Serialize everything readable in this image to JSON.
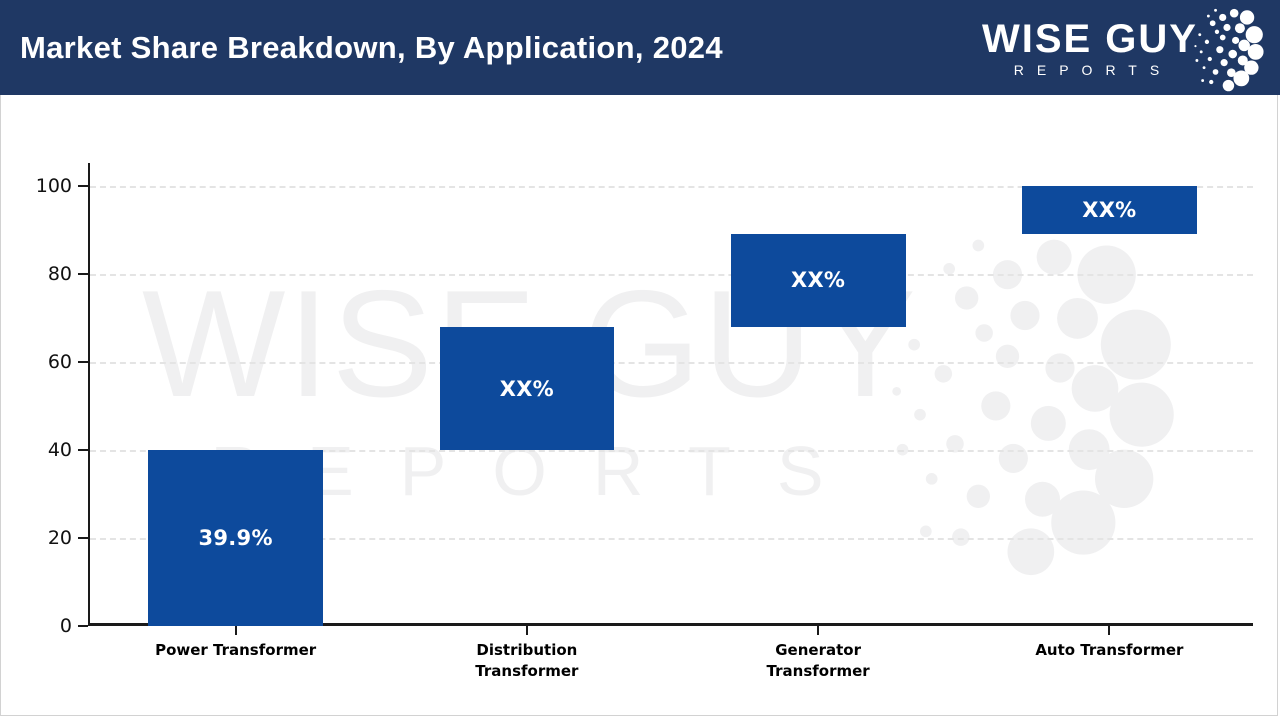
{
  "header": {
    "title": "Market Share Breakdown, By Application, 2024",
    "logo": {
      "line1": "WISE GUY",
      "line2": "REPORTS"
    },
    "bg_color": "#1f3864"
  },
  "watermark": {
    "line1": "WISE GUY",
    "line2": "REPORTS"
  },
  "chart_data": {
    "type": "bar",
    "subtype": "waterfall",
    "title": "Market Share Breakdown, By Application, 2024",
    "categories": [
      "Power Transformer",
      "Distribution Transformer",
      "Generator Transformer",
      "Auto Transformer"
    ],
    "bars": [
      {
        "category": "Power Transformer",
        "start": 0,
        "end": 39.9,
        "label": "39.9%"
      },
      {
        "category": "Distribution Transformer",
        "start": 39.9,
        "end": 68.0,
        "label": "XX%"
      },
      {
        "category": "Generator Transformer",
        "start": 68.0,
        "end": 89.2,
        "label": "XX%"
      },
      {
        "category": "Auto Transformer",
        "start": 89.2,
        "end": 100,
        "label": "XX%"
      }
    ],
    "xlabel": "",
    "ylabel": "",
    "ylim": [
      0,
      100
    ],
    "yticks": [
      0,
      20,
      40,
      60,
      80,
      100
    ],
    "grid": "horizontal-dashed",
    "legend": "none",
    "bar_color": "#0d4a9c",
    "value_label_color": "#ffffff"
  }
}
